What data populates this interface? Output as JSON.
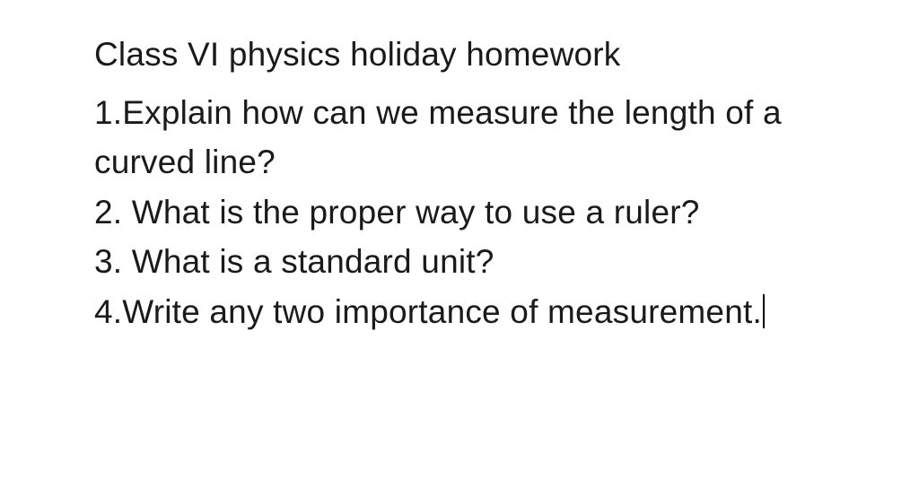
{
  "document": {
    "title": "Class VI physics holiday homework",
    "text_color": "#1a1a1a",
    "background_color": "#ffffff",
    "font_family": "Arial",
    "title_fontsize": 37,
    "question_fontsize": 37,
    "questions": [
      {
        "number": "1.",
        "text": "Explain how can we measure the length of a curved line?"
      },
      {
        "number": "2.",
        "text": " What is the proper way to use a ruler?"
      },
      {
        "number": "3.",
        "text": " What is a standard unit?"
      },
      {
        "number": "4.",
        "text": "Write any two importance of measurement."
      }
    ]
  }
}
